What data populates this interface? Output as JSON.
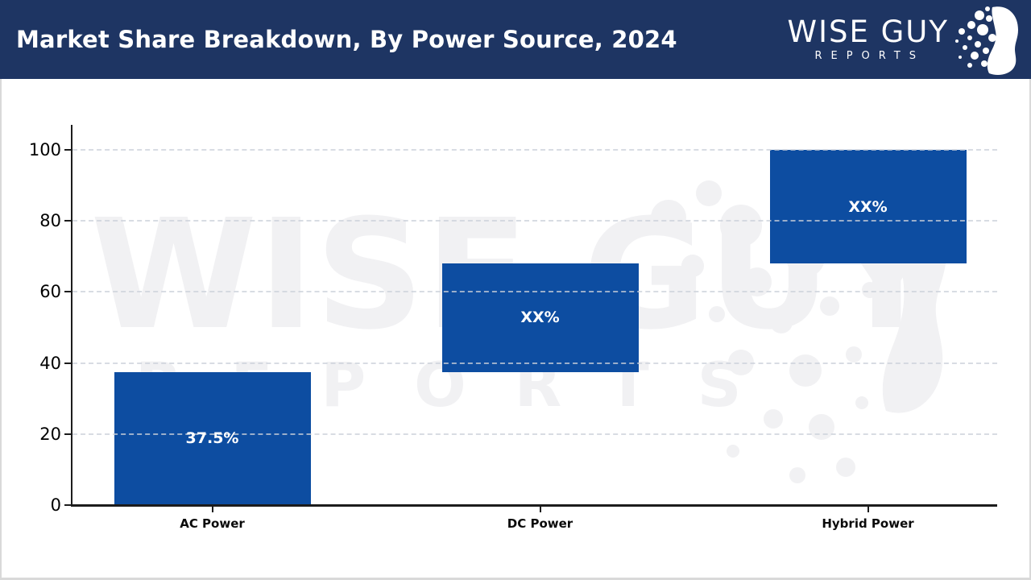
{
  "header": {
    "title": "Market Share Breakdown, By Power Source, 2024",
    "logo": {
      "wordmark": "WISE GUY",
      "subtext": "REPORTS"
    }
  },
  "watermark": {
    "wordmark": "WISE GUY",
    "subtext": "REPORTS"
  },
  "colors": {
    "header_bg": "#1e3563",
    "bar": "#0d4da1",
    "bar_label_text": "#ffffff",
    "axis": "#1c1c1c",
    "gridline": "#d9dde5",
    "watermark": "#f1f1f3",
    "title_text": "#ffffff"
  },
  "chart_data": {
    "type": "bar",
    "subtype": "waterfall",
    "title": "Market Share Breakdown, By Power Source, 2024",
    "categories": [
      "AC Power",
      "DC Power",
      "Hybrid Power"
    ],
    "segments": [
      {
        "category": "AC Power",
        "start": 0,
        "end": 37.5,
        "label": "37.5%"
      },
      {
        "category": "DC Power",
        "start": 37.5,
        "end": 68,
        "label": "XX%"
      },
      {
        "category": "Hybrid Power",
        "start": 68,
        "end": 100,
        "label": "XX%"
      }
    ],
    "xlabel": "",
    "ylabel": "",
    "ylim": [
      0,
      100
    ],
    "yticks": [
      0,
      20,
      40,
      60,
      80,
      100
    ],
    "grid": "horizontal-dashed",
    "legend": "none",
    "bar_color": "#0d4da1"
  }
}
